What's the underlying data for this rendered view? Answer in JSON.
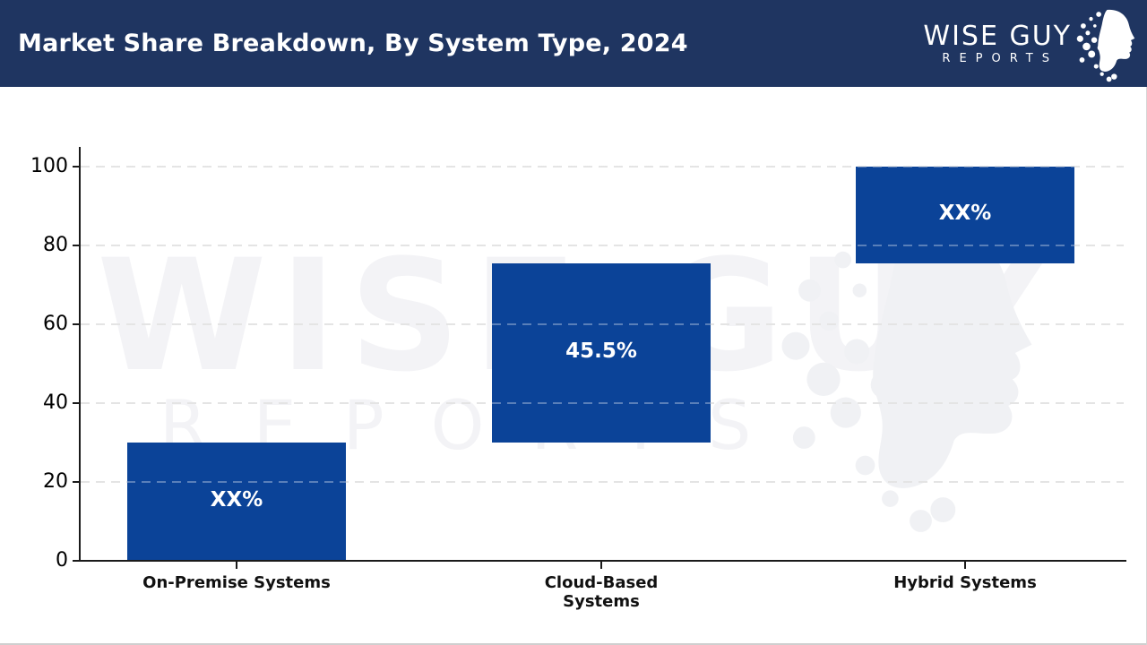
{
  "header": {
    "title": "Market Share Breakdown, By System Type, 2024",
    "background_color": "#1f3561",
    "logo": {
      "line1": "WISE GUY",
      "line2": "REPORTS"
    }
  },
  "watermark": {
    "line1": "WISE GUY",
    "line2": "REPORTS"
  },
  "chart_data": {
    "type": "bar",
    "variant": "floating-segment-breakdown",
    "title": "Market Share Breakdown, By System Type, 2024",
    "categories": [
      "On-Premise Systems",
      "Cloud-Based\nSystems",
      "Hybrid Systems"
    ],
    "segments": [
      {
        "category": "On-Premise Systems",
        "start": 0,
        "end": 30,
        "value_label": "XX%"
      },
      {
        "category": "Cloud-Based Systems",
        "start": 30,
        "end": 75.5,
        "value_label": "45.5%"
      },
      {
        "category": "Hybrid Systems",
        "start": 75.5,
        "end": 100,
        "value_label": "XX%"
      }
    ],
    "yticks": [
      0,
      20,
      40,
      60,
      80,
      100
    ],
    "ylim": [
      0,
      105
    ],
    "xlabel": "",
    "ylabel": "",
    "grid": "horizontal-dashed",
    "legend": "none",
    "bar_color": "#0b4398",
    "bar_label_color": "#ffffff",
    "axis_color": "#1a1a1a",
    "grid_color": "#d8d8d8",
    "header_color": "#1f3561"
  }
}
